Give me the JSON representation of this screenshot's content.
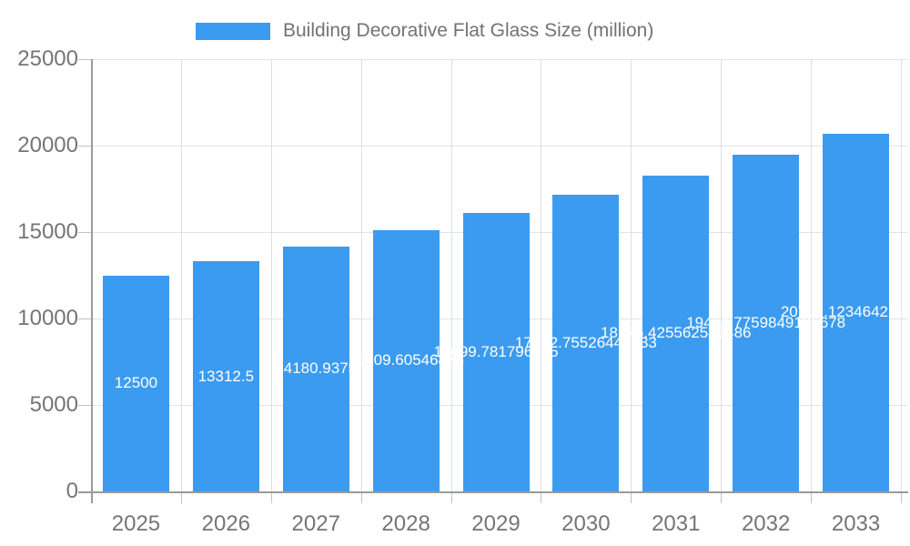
{
  "legend": {
    "label": "Building Decorative Flat Glass Size (million)"
  },
  "chart_data": {
    "type": "bar",
    "title": "Building Decorative Flat Glass Size (million)",
    "categories": [
      "2025",
      "2026",
      "2027",
      "2028",
      "2029",
      "2030",
      "2031",
      "2032",
      "2033"
    ],
    "values": [
      12500,
      13312.5,
      14180.9375,
      15109.60546875,
      16099.781796875,
      17152.75526440133,
      18276.425562546487,
      19454.77598491257,
      20702.123464212345
    ],
    "value_labels": [
      "12500",
      "13312.5",
      "14180.9375",
      "15109.60546875",
      "16099.781796875",
      "17152.75526440133",
      "18276.425562546486",
      "19454.7759849125678",
      "20702.123464212345"
    ],
    "series_name": "Building Decorative Flat Glass Size (million)",
    "xlabel": "",
    "ylabel": "",
    "ylim": [
      0,
      25000
    ],
    "ytick_step": 5000,
    "ytick_labels": [
      "0",
      "5000",
      "10000",
      "15000",
      "20000",
      "25000"
    ],
    "grid": "on",
    "legend_position": "top",
    "bar_color": "#3b9bf0",
    "label_color": "#ffffff"
  },
  "colors": {
    "bar": "#3b9bf0",
    "axis": "#9a9a9a",
    "gridline": "#e3e3e3",
    "tick": "#c2c2c2",
    "axis_text": "#757575",
    "background": "#ffffff"
  }
}
